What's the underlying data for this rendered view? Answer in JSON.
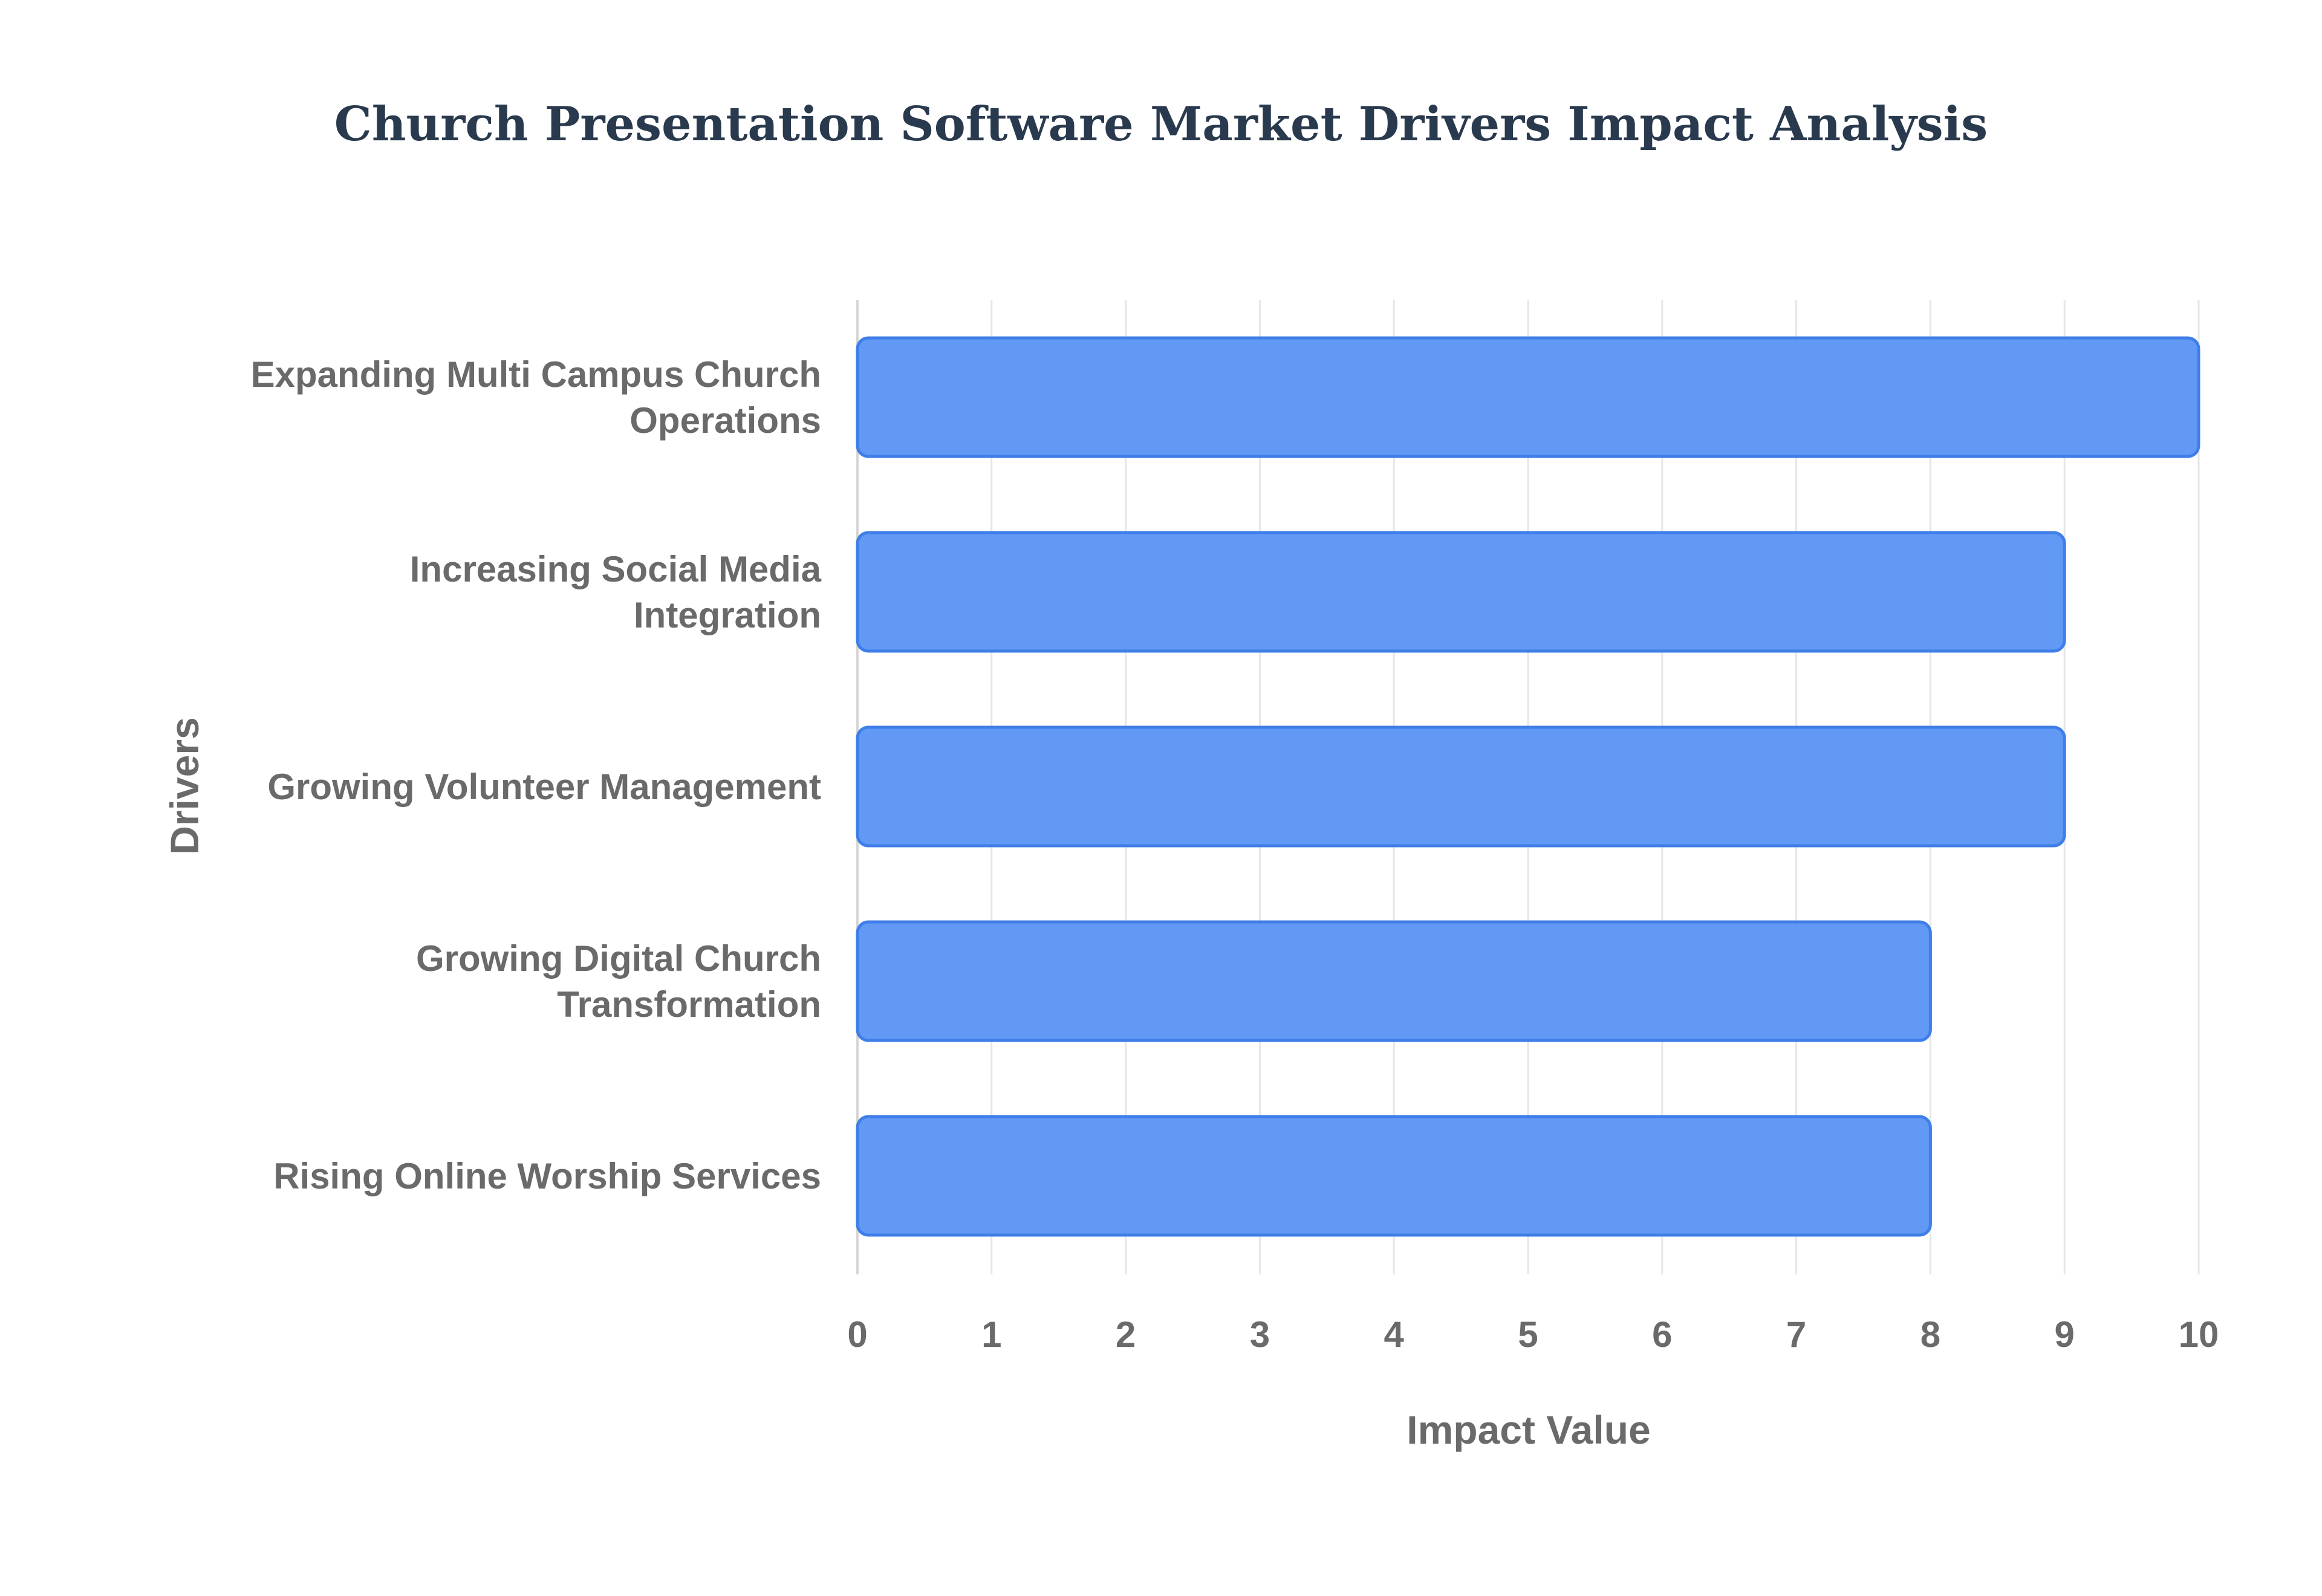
{
  "chart_data": {
    "type": "bar",
    "orientation": "horizontal",
    "title": "Church Presentation Software Market Drivers Impact Analysis",
    "xlabel": "Impact Value",
    "ylabel": "Drivers",
    "xlim": [
      0,
      10
    ],
    "xticks": [
      "0",
      "1",
      "2",
      "3",
      "4",
      "5",
      "6",
      "7",
      "8",
      "9",
      "10"
    ],
    "grid": true,
    "categories": [
      [
        "Expanding Multi Campus Church",
        "Operations"
      ],
      [
        "Increasing Social Media",
        "Integration"
      ],
      [
        "Growing Volunteer Management"
      ],
      [
        "Growing Digital Church",
        "Transformation"
      ],
      [
        "Rising Online Worship Services"
      ]
    ],
    "values": [
      10,
      9,
      9,
      8,
      8
    ],
    "colors": {
      "bar_fill": "#6199f5",
      "bar_stroke": "#3f7ee8",
      "title": "#2a3a4e",
      "label": "#6a6a6a",
      "grid": "#e6e6e6"
    }
  }
}
